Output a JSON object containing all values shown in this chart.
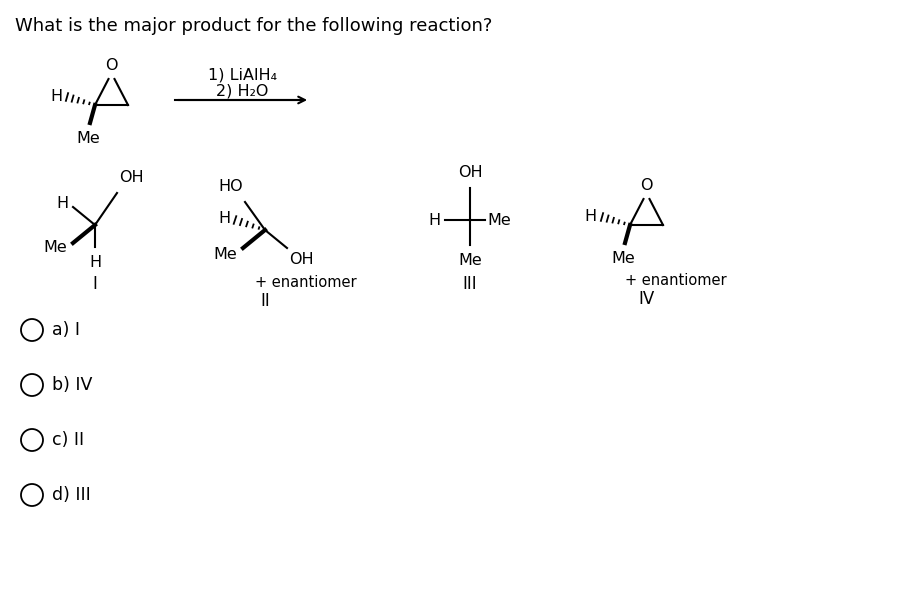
{
  "title": "What is the major product for the following reaction?",
  "title_fontsize": 13,
  "background_color": "#ffffff",
  "reagents_line1": "1) LiAlH₄",
  "reagents_line2": "2) H₂O",
  "options": [
    "a) I",
    "b) IV",
    "c) II",
    "d) III"
  ],
  "enantiomer_text": "+ enantiomer",
  "font_size": 11.5,
  "font_size_roman": 12
}
